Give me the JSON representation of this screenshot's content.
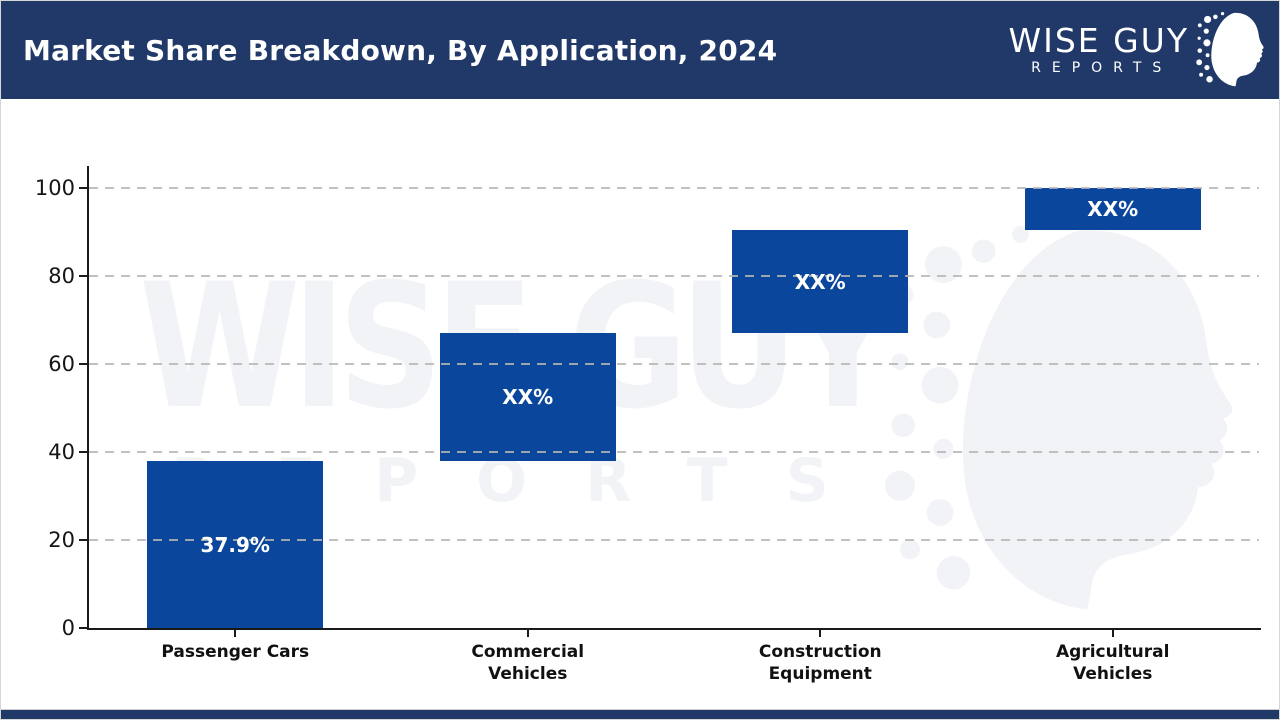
{
  "header": {
    "title": "Market Share Breakdown, By Application, 2024",
    "brand_name": "WISE GUY",
    "brand_sub": "REPORTS"
  },
  "watermark": {
    "brand_name": "WISE GUY",
    "brand_sub": "REPORTS"
  },
  "chart_data": {
    "type": "bar",
    "subtype": "waterfall",
    "title": "Market Share Breakdown, By Application, 2024",
    "categories": [
      "Passenger Cars",
      "Commercial\nVehicles",
      "Construction\nEquipment",
      "Agricultural\nVehicles"
    ],
    "series": [
      {
        "name": "Market share (%)",
        "segments": [
          {
            "start": 0,
            "end": 37.9,
            "label": "37.9%"
          },
          {
            "start": 37.9,
            "end": 67,
            "label": "XX%"
          },
          {
            "start": 67,
            "end": 90.5,
            "label": "XX%"
          },
          {
            "start": 90.5,
            "end": 100,
            "label": "XX%"
          }
        ]
      }
    ],
    "ylim": [
      0,
      105
    ],
    "yticks": [
      0,
      20,
      40,
      60,
      80,
      100
    ],
    "xlabel": "",
    "ylabel": "",
    "grid": {
      "horizontal": true,
      "style": "dashed"
    },
    "legend": "none",
    "bar_color": "#0a479c",
    "bar_label_color": "#ffffff"
  },
  "colors": {
    "header_bg": "#213968",
    "footer_bg": "#213968",
    "bar": "#0a479c",
    "watermark": "#f2f3f6",
    "axis": "#1a1a1a",
    "grid": "#bababa"
  }
}
